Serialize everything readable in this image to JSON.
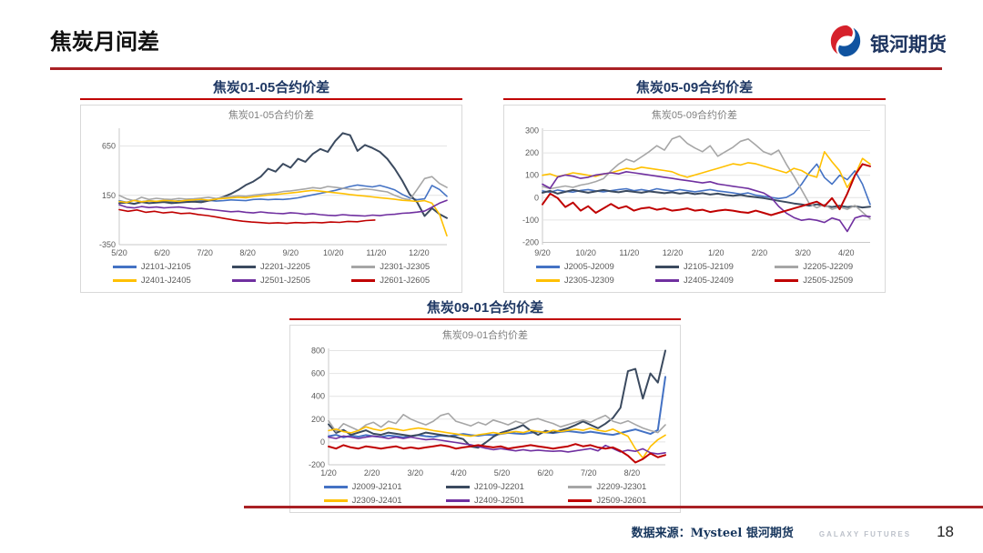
{
  "header": {
    "title": "焦炭月间差",
    "logo_text": "银河期货"
  },
  "footer": {
    "source": "数据来源：Mysteel 银河期货",
    "brand": "GALAXY FUTURES",
    "page": "18"
  },
  "colors": {
    "accent_red": "#c00000",
    "heading_navy": "#1f3864",
    "rule_red": "#a92125"
  },
  "chart_data": [
    {
      "type": "line",
      "panel_title": "焦炭01-05合约价差",
      "title": "焦炭01-05合约价差",
      "x_ticks": [
        "5/20",
        "6/20",
        "7/20",
        "8/20",
        "9/20",
        "10/20",
        "11/20",
        "12/20"
      ],
      "x_overhang": 0.65,
      "y_ticks": [
        650,
        150,
        -350
      ],
      "y_range": [
        -350,
        830
      ],
      "grid": true,
      "legend_position": "bottom",
      "series": [
        {
          "name": "J2101-J2105",
          "color": "#4472c4",
          "values": [
            95,
            80,
            100,
            85,
            95,
            88,
            92,
            85,
            95,
            90,
            88,
            95,
            100,
            92,
            96,
            104,
            100,
            96,
            108,
            112,
            105,
            110,
            108,
            115,
            125,
            140,
            155,
            170,
            185,
            200,
            220,
            240,
            255,
            245,
            235,
            250,
            230,
            205,
            160,
            125,
            105,
            115,
            250,
            210,
            140
          ]
        },
        {
          "name": "J2201-J2205",
          "color": "#3b4a5f",
          "width": 2,
          "values": [
            70,
            78,
            64,
            82,
            70,
            76,
            82,
            70,
            76,
            82,
            86,
            80,
            95,
            110,
            135,
            165,
            205,
            255,
            290,
            340,
            420,
            390,
            470,
            430,
            520,
            490,
            570,
            620,
            590,
            700,
            780,
            760,
            600,
            660,
            630,
            590,
            520,
            420,
            300,
            160,
            80,
            -60,
            20,
            -40,
            -80
          ]
        },
        {
          "name": "J2301-J2305",
          "color": "#a6a6a6",
          "values": [
            150,
            115,
            95,
            130,
            108,
            120,
            112,
            108,
            118,
            112,
            116,
            122,
            130,
            118,
            128,
            138,
            145,
            140,
            152,
            160,
            168,
            175,
            188,
            195,
            205,
            215,
            228,
            220,
            240,
            232,
            222,
            212,
            205,
            215,
            208,
            196,
            185,
            150,
            120,
            105,
            210,
            320,
            340,
            270,
            230
          ]
        },
        {
          "name": "J2401-J2405",
          "color": "#ffc000",
          "values": [
            88,
            78,
            98,
            85,
            93,
            90,
            98,
            94,
            90,
            99,
            104,
            108,
            102,
            112,
            118,
            124,
            130,
            126,
            136,
            144,
            152,
            158,
            166,
            174,
            182,
            192,
            200,
            192,
            184,
            176,
            168,
            158,
            150,
            142,
            134,
            126,
            118,
            110,
            100,
            95,
            88,
            96,
            70,
            -40,
            -260
          ]
        },
        {
          "name": "J2501-J2505",
          "color": "#7030a0",
          "values": [
            55,
            30,
            22,
            36,
            26,
            32,
            22,
            28,
            32,
            22,
            12,
            18,
            8,
            0,
            -8,
            -16,
            -12,
            -22,
            -28,
            -18,
            -26,
            -32,
            -36,
            -26,
            -32,
            -42,
            -36,
            -46,
            -52,
            -56,
            -46,
            -52,
            -56,
            -60,
            -50,
            -56,
            -46,
            -42,
            -32,
            -28,
            -20,
            -10,
            30,
            70,
            100
          ]
        },
        {
          "name": "J2601-J2605",
          "color": "#c00000",
          "span": [
            0,
            0.78
          ],
          "values": [
            5,
            -12,
            2,
            -22,
            -12,
            -28,
            -20,
            -35,
            -30,
            -45,
            -55,
            -70,
            -85,
            -100,
            -112,
            -120,
            -126,
            -132,
            -128,
            -134,
            -126,
            -130,
            -124,
            -128,
            -120,
            -124,
            -114,
            -118,
            -106,
            -100
          ]
        }
      ]
    },
    {
      "type": "line",
      "panel_title": "焦炭05-09合约价差",
      "title": "焦炭05-09合约价差",
      "x_ticks": [
        "9/20",
        "10/20",
        "11/20",
        "12/20",
        "1/20",
        "2/20",
        "3/20",
        "4/20"
      ],
      "x_overhang": 0.55,
      "y_ticks": [
        300,
        200,
        100,
        0,
        -100,
        -200
      ],
      "y_range": [
        -210,
        310
      ],
      "grid": true,
      "legend_position": "bottom",
      "series": [
        {
          "name": "J2005-J2009",
          "color": "#4472c4",
          "values": [
            30,
            24,
            34,
            28,
            25,
            32,
            36,
            30,
            26,
            31,
            36,
            40,
            31,
            36,
            30,
            40,
            34,
            30,
            36,
            31,
            26,
            31,
            36,
            30,
            26,
            21,
            16,
            21,
            11,
            6,
            1,
            -4,
            1,
            20,
            60,
            110,
            150,
            90,
            60,
            100,
            80,
            120,
            60,
            -30
          ]
        },
        {
          "name": "J2105-J2109",
          "color": "#3b4a5f",
          "width": 2,
          "values": [
            22,
            30,
            18,
            26,
            34,
            28,
            22,
            28,
            34,
            28,
            24,
            30,
            26,
            22,
            28,
            24,
            20,
            24,
            18,
            22,
            16,
            20,
            14,
            18,
            12,
            8,
            12,
            6,
            2,
            -2,
            -8,
            -14,
            -20,
            -26,
            -30,
            -36,
            -30,
            -36,
            -42,
            -36,
            -42,
            -38,
            -44,
            -40
          ]
        },
        {
          "name": "J2205-J2209",
          "color": "#a6a6a6",
          "values": [
            50,
            40,
            46,
            52,
            46,
            56,
            62,
            72,
            85,
            120,
            150,
            172,
            160,
            182,
            205,
            232,
            212,
            262,
            275,
            242,
            222,
            205,
            232,
            185,
            205,
            225,
            252,
            262,
            235,
            205,
            192,
            212,
            150,
            95,
            35,
            -25,
            -45,
            -30,
            -52,
            -42,
            -52,
            -35,
            -65,
            -95
          ]
        },
        {
          "name": "J2305-J2309",
          "color": "#ffc000",
          "values": [
            100,
            106,
            94,
            101,
            111,
            106,
            100,
            95,
            106,
            111,
            121,
            131,
            126,
            136,
            131,
            126,
            121,
            116,
            101,
            91,
            101,
            111,
            121,
            131,
            141,
            151,
            146,
            156,
            151,
            141,
            131,
            121,
            111,
            131,
            121,
            101,
            91,
            205,
            160,
            120,
            45,
            100,
            175,
            150
          ]
        },
        {
          "name": "J2405-J2409",
          "color": "#7030a0",
          "values": [
            60,
            42,
            92,
            101,
            96,
            86,
            91,
            101,
            106,
            111,
            106,
            116,
            111,
            106,
            101,
            96,
            91,
            86,
            81,
            76,
            71,
            66,
            71,
            61,
            56,
            51,
            46,
            41,
            31,
            21,
            1,
            -39,
            -69,
            -89,
            -101,
            -96,
            -101,
            -111,
            -91,
            -101,
            -151,
            -91,
            -81,
            -85
          ]
        },
        {
          "name": "J2505-J2509",
          "color": "#c00000",
          "width": 2,
          "values": [
            -30,
            18,
            -2,
            -42,
            -22,
            -58,
            -38,
            -68,
            -48,
            -28,
            -48,
            -38,
            -58,
            -48,
            -44,
            -54,
            -48,
            -58,
            -54,
            -48,
            -58,
            -54,
            -64,
            -58,
            -54,
            -58,
            -64,
            -68,
            -58,
            -68,
            -78,
            -68,
            -58,
            -48,
            -38,
            -28,
            -18,
            -38,
            -2,
            -52,
            18,
            100,
            150,
            140
          ]
        }
      ]
    },
    {
      "type": "line",
      "panel_title": "焦炭09-01合约价差",
      "title": "焦炭09-01合约价差",
      "x_ticks": [
        "1/20",
        "2/20",
        "3/20",
        "4/20",
        "5/20",
        "6/20",
        "7/20",
        "8/20"
      ],
      "x_overhang": 0.77,
      "y_ticks": [
        800,
        600,
        400,
        200,
        0,
        -200
      ],
      "y_range": [
        -200,
        820
      ],
      "grid": true,
      "legend_position": "bottom",
      "series": [
        {
          "name": "J2009-J2101",
          "color": "#4472c4",
          "width": 2,
          "values": [
            50,
            62,
            40,
            56,
            46,
            60,
            50,
            44,
            56,
            50,
            40,
            50,
            60,
            50,
            44,
            56,
            50,
            60,
            70,
            60,
            54,
            64,
            60,
            70,
            80,
            74,
            70,
            80,
            90,
            84,
            78,
            88,
            95,
            88,
            80,
            90,
            80,
            70,
            62,
            78,
            95,
            110,
            90,
            70,
            105,
            570
          ]
        },
        {
          "name": "J2109-J2201",
          "color": "#3b4a5f",
          "width": 2,
          "values": [
            155,
            80,
            105,
            62,
            82,
            102,
            72,
            62,
            82,
            72,
            62,
            52,
            62,
            82,
            72,
            62,
            52,
            42,
            25,
            -40,
            -50,
            -5,
            45,
            80,
            100,
            120,
            148,
            98,
            62,
            98,
            82,
            102,
            120,
            148,
            180,
            150,
            120,
            160,
            210,
            300,
            620,
            640,
            380,
            600,
            520,
            800
          ]
        },
        {
          "name": "J2209-J2301",
          "color": "#a6a6a6",
          "values": [
            185,
            90,
            160,
            130,
            100,
            150,
            172,
            130,
            182,
            162,
            240,
            200,
            172,
            150,
            182,
            232,
            250,
            182,
            162,
            140,
            172,
            150,
            192,
            172,
            150,
            182,
            162,
            192,
            205,
            182,
            162,
            132,
            152,
            172,
            192,
            172,
            205,
            232,
            182,
            162,
            185,
            152,
            122,
            100,
            82,
            150
          ]
        },
        {
          "name": "J2309-J2401",
          "color": "#ffc000",
          "values": [
            100,
            112,
            90,
            80,
            100,
            132,
            112,
            100,
            122,
            112,
            100,
            112,
            122,
            112,
            100,
            90,
            80,
            70,
            60,
            50,
            62,
            72,
            82,
            72,
            82,
            92,
            82,
            102,
            92,
            82,
            102,
            92,
            102,
            112,
            102,
            122,
            102,
            92,
            112,
            80,
            50,
            -60,
            -140,
            -40,
            20,
            60
          ]
        },
        {
          "name": "J2409-J2501",
          "color": "#7030a0",
          "values": [
            42,
            30,
            52,
            42,
            30,
            42,
            52,
            42,
            30,
            42,
            30,
            42,
            30,
            20,
            25,
            15,
            5,
            -5,
            -15,
            -25,
            -40,
            -55,
            -68,
            -58,
            -68,
            -78,
            -68,
            -78,
            -72,
            -78,
            -82,
            -78,
            -88,
            -78,
            -68,
            -58,
            -78,
            -30,
            -58,
            -88,
            -72,
            -82,
            -60,
            -95,
            -105,
            -95
          ]
        },
        {
          "name": "J2509-J2601",
          "color": "#c00000",
          "width": 2,
          "values": [
            -40,
            -58,
            -28,
            -48,
            -58,
            -38,
            -48,
            -58,
            -48,
            -38,
            -58,
            -48,
            -58,
            -48,
            -38,
            -28,
            -38,
            -58,
            -48,
            -38,
            -28,
            -38,
            -48,
            -38,
            -58,
            -48,
            -38,
            -28,
            -38,
            -48,
            -58,
            -48,
            -38,
            -18,
            -38,
            -28,
            -48,
            -58,
            -48,
            -78,
            -120,
            -180,
            -150,
            -100,
            -135,
            -115
          ]
        }
      ]
    }
  ]
}
